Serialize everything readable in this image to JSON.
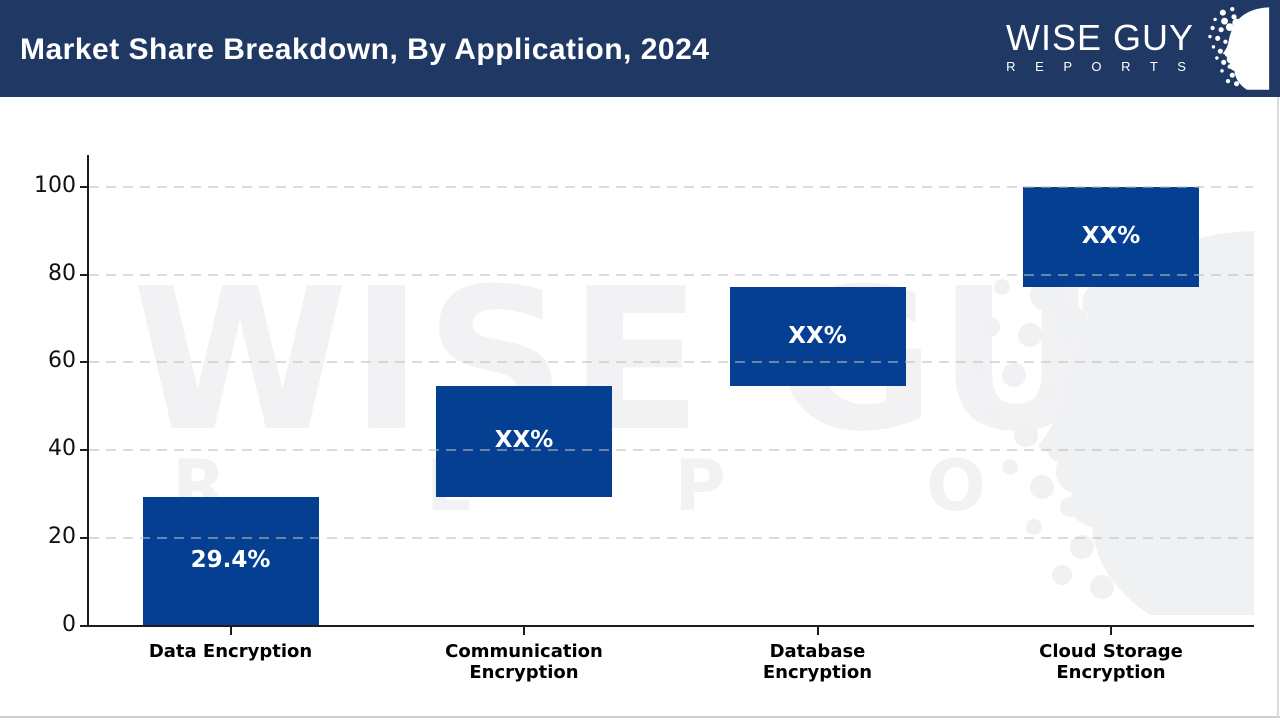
{
  "header": {
    "title": "Market Share Breakdown, By Application, 2024",
    "logo": {
      "line1": "WISE GUY",
      "line2": "REPORTS"
    }
  },
  "watermark": {
    "line1": "WISE GUY",
    "line2": "REPORTS"
  },
  "chart_data": {
    "type": "bar",
    "subtype": "waterfall",
    "title": "Market Share Breakdown, By Application, 2024",
    "categories": [
      "Data Encryption",
      "Communication Encryption",
      "Database Encryption",
      "Cloud Storage Encryption"
    ],
    "bars": [
      {
        "category": "Data Encryption",
        "start": 0,
        "end": 29.4,
        "label": "29.4%"
      },
      {
        "category": "Communication Encryption",
        "start": 29.4,
        "end": 54.6,
        "label": "XX%"
      },
      {
        "category": "Database Encryption",
        "start": 54.6,
        "end": 77.1,
        "label": "XX%"
      },
      {
        "category": "Cloud Storage Encryption",
        "start": 77.1,
        "end": 100,
        "label": "XX%"
      }
    ],
    "yticks": [
      0,
      20,
      40,
      60,
      80,
      100
    ],
    "ylim": [
      0,
      107
    ],
    "grid": "dashed horizontal, drawn over bars",
    "legend": "none",
    "bar_color": "#053f92",
    "header_color": "#203864",
    "axis_color": "#1c1c1c",
    "gridline_color": "#d9d9d9",
    "watermark_color": "#f2f2f4"
  }
}
